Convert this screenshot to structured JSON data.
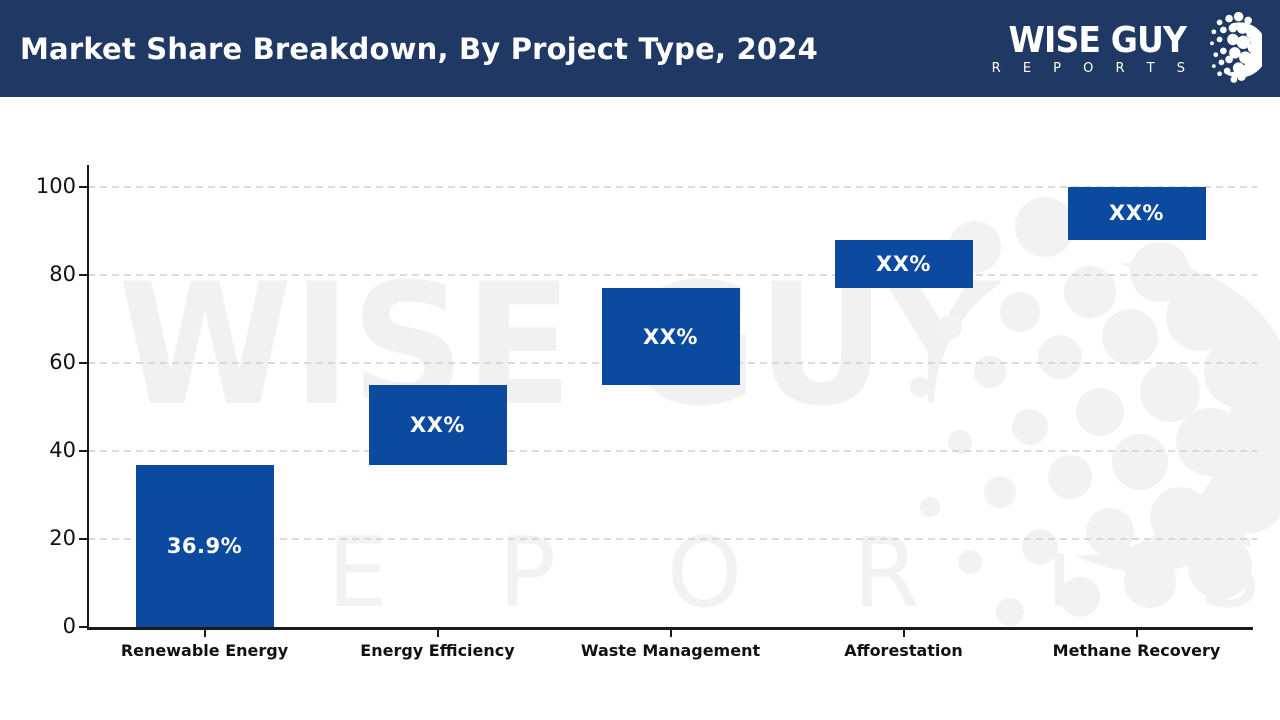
{
  "header": {
    "title": "Market Share Breakdown, By Project Type, 2024",
    "bg_color": "#1f3864",
    "logo": {
      "line1": "WISE GUY",
      "line2": "R E P O R T S"
    }
  },
  "watermark": {
    "line1": "WISE GUY",
    "line2": "R E P O R T S"
  },
  "chart_data": {
    "type": "bar",
    "subtype": "waterfall-floating-bars",
    "title": "Market Share Breakdown, By Project Type, 2024",
    "xlabel": "",
    "ylabel": "",
    "ylim": [
      0,
      100
    ],
    "y_ticks": [
      0,
      20,
      40,
      60,
      80,
      100
    ],
    "grid": "horizontal-dashed",
    "legend": "none",
    "bar_color": "#0b4a9e",
    "bar_label_color": "#ffffff",
    "categories": [
      "Renewable Energy",
      "Energy Efficiency",
      "Waste Management",
      "Afforestation",
      "Methane Recovery"
    ],
    "segments": [
      {
        "category": "Renewable Energy",
        "start": 0,
        "end": 36.9,
        "label": "36.9%"
      },
      {
        "category": "Energy Efficiency",
        "start": 36.9,
        "end": 55,
        "label": "XX%"
      },
      {
        "category": "Waste Management",
        "start": 55,
        "end": 77,
        "label": "XX%"
      },
      {
        "category": "Afforestation",
        "start": 77,
        "end": 88,
        "label": "XX%"
      },
      {
        "category": "Methane Recovery",
        "start": 88,
        "end": 100,
        "label": "XX%"
      }
    ]
  }
}
